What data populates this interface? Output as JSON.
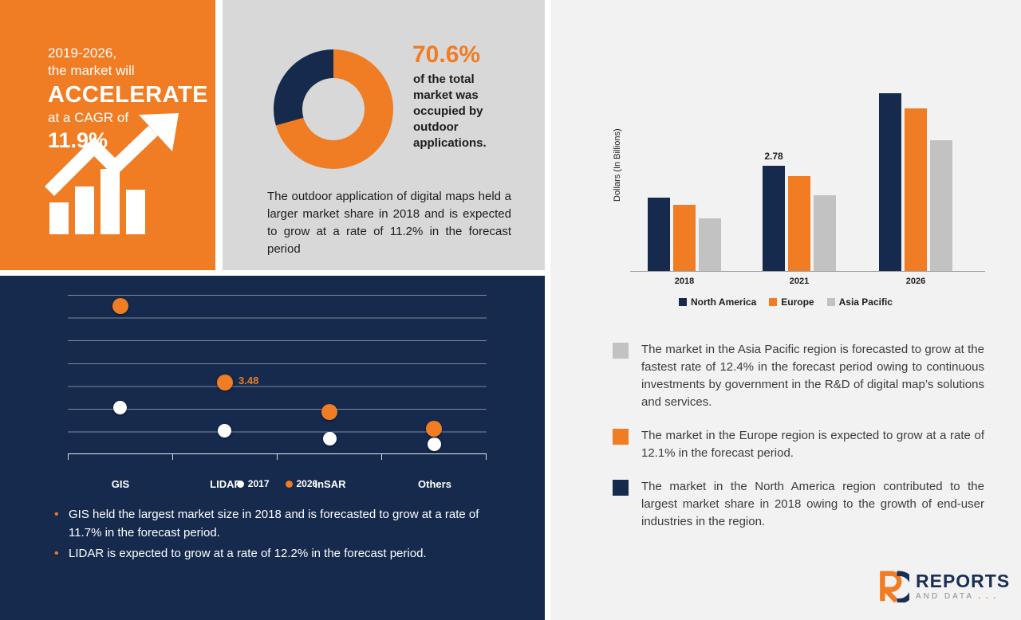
{
  "accelerate_panel": {
    "period": "2019-2026,",
    "line2": "the market will",
    "emphasis": "ACCELERATE",
    "line4": "at a CAGR of",
    "cagr": "11.9%"
  },
  "outdoor_panel": {
    "percent": "70.6%",
    "caption": "of the total market was occupied by outdoor applications.",
    "paragraph": "The outdoor application of digital maps held a larger market share in 2018 and is expected to grow at a rate of 11.2% in the forecast period"
  },
  "technology_panel": {
    "bullets": [
      "GIS held the largest market size in 2018 and is forecasted to grow at a rate of 11.7% in the forecast period.",
      "LIDAR is expected to grow at a rate of 12.2% in the forecast period."
    ]
  },
  "regional_panel": {
    "bullets": [
      {
        "color": "#C2C2C2",
        "text": "The market in the Asia Pacific region is forecasted to grow at the fastest rate of 12.4% in the forecast period owing to continuous investments by government in the R&D of digital map’s solutions and services."
      },
      {
        "color": "#F07C23",
        "text": "The market in the Europe region is expected to grow at a rate of 12.1% in the forecast period."
      },
      {
        "color": "#152A4D",
        "text": "The market in the North America region contributed to the largest market share in 2018 owing to the growth of end-user industries in the region."
      }
    ]
  },
  "logo": {
    "title": "REPORTS",
    "subtitle": "AND DATA",
    "dots": ". . ."
  },
  "colors": {
    "orange": "#F07C23",
    "navy": "#152A4D",
    "light_gray": "#C2C2C2",
    "panel_gray": "#D8D8D8",
    "right_bg": "#F2F2F2"
  },
  "chart_data": [
    {
      "type": "pie",
      "subtype": "donut",
      "slices": [
        {
          "label": "Outdoor applications",
          "value": 70.6,
          "color": "#F07C23"
        },
        {
          "label": "Remainder of market",
          "value": 29.4,
          "color": "#152A4D"
        }
      ],
      "annotation": "70.6% of the total market was occupied by outdoor applications."
    },
    {
      "type": "scatter",
      "categories": [
        "GIS",
        "LIDAR",
        "InSAR",
        "Others"
      ],
      "series": [
        {
          "name": "2017",
          "color": "#FFFFFF",
          "values": [
            2.25,
            1.15,
            0.75,
            0.5
          ]
        },
        {
          "name": "2026",
          "color": "#F07C23",
          "values": [
            7.2,
            3.48,
            2.05,
            1.25
          ]
        }
      ],
      "labeled_point": {
        "category": "LIDAR",
        "series": "2026",
        "label": "3.48"
      },
      "ylim": [
        0,
        7.75
      ],
      "grid": true,
      "legend_position": "bottom"
    },
    {
      "type": "bar",
      "categories": [
        "2018",
        "2021",
        "2026"
      ],
      "series": [
        {
          "name": "North America",
          "color": "#152A4D",
          "values": [
            1.95,
            2.78,
            4.7
          ]
        },
        {
          "name": "Europe",
          "color": "#F07C23",
          "values": [
            1.75,
            2.5,
            4.3
          ]
        },
        {
          "name": "Asia Pacific",
          "color": "#C2C2C2",
          "values": [
            1.4,
            2.0,
            3.45
          ]
        }
      ],
      "ylabel": "Dollars (In Billions)",
      "annotation": {
        "category": "2021",
        "series": "North America",
        "label": "2.78"
      },
      "ylim": [
        0,
        4.87
      ],
      "legend_position": "bottom"
    }
  ]
}
